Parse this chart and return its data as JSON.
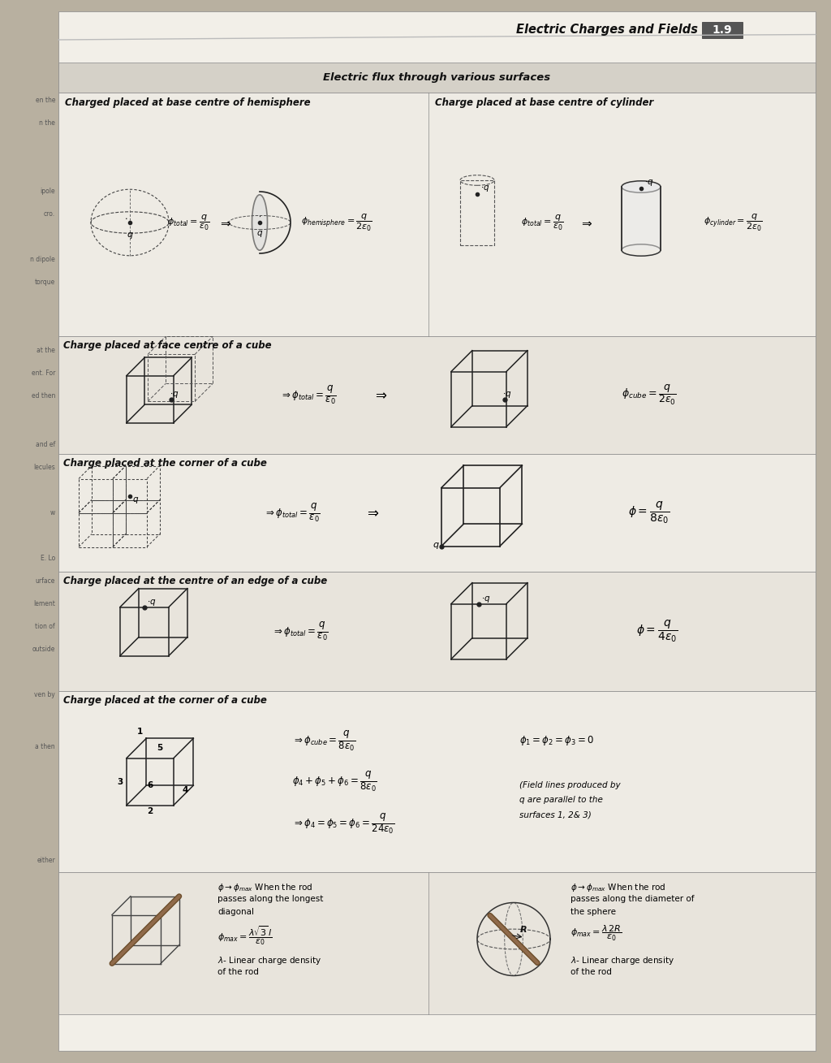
{
  "page_title": "Electric Charges and Fields",
  "page_num": "1.9",
  "main_title": "Electric flux through various surfaces",
  "bg_color": "#b8b0a0",
  "page_color": "#f2efe8",
  "header_color": "#d8d4cc",
  "row_color_alt": "#e8e4dc",
  "row_color": "#eeebe4",
  "sections": [
    {
      "title_left": "Charged placed at base centre of hemisphere",
      "title_right": "Charge placed at base centre of cylinder"
    },
    {
      "title": "Charge placed at face centre of a cube"
    },
    {
      "title": "Charge placed at the corner of a cube"
    },
    {
      "title": "Charge placed at the centre of an edge of a cube"
    },
    {
      "title": "Charge placed at the corner of a cube"
    }
  ],
  "left_margin_texts": [
    "en the",
    "n the",
    "",
    "",
    "ipole",
    "cro.",
    "",
    "n dipole",
    "torque",
    "",
    "",
    "at the",
    "ent. For",
    "ed then",
    "",
    "and ef",
    "lecules",
    "",
    "w",
    "",
    "E. Lo",
    "urface",
    "lement",
    "tion of",
    "outside",
    "",
    "ven by",
    "",
    "a then",
    "",
    "",
    "",
    "",
    "either"
  ]
}
